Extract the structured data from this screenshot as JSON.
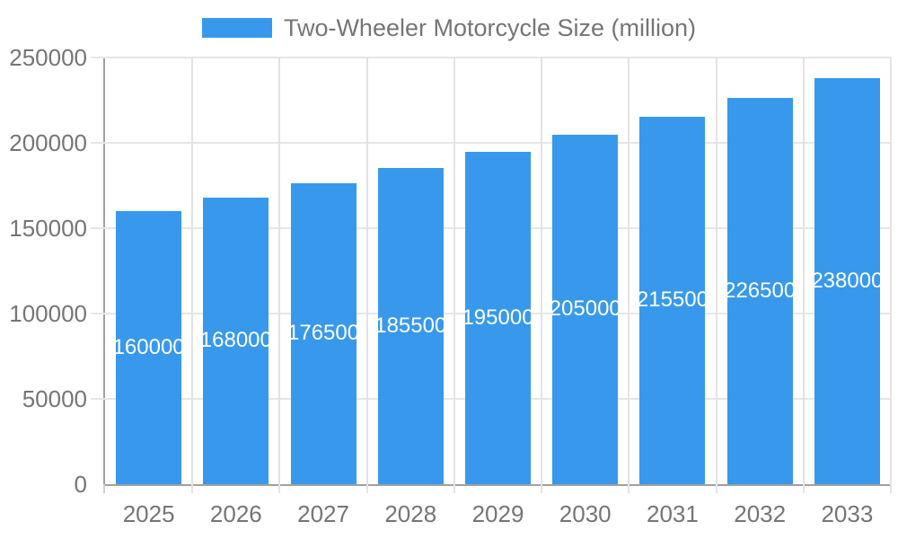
{
  "legend": {
    "label": "Two-Wheeler Motorcycle Size (million)"
  },
  "chart_data": {
    "type": "bar",
    "title": "",
    "xlabel": "",
    "ylabel": "",
    "categories": [
      "2025",
      "2026",
      "2027",
      "2028",
      "2029",
      "2030",
      "2031",
      "2032",
      "2033"
    ],
    "series": [
      {
        "name": "Two-Wheeler Motorcycle Size (million)",
        "values": [
          160000,
          168000,
          176500,
          185500,
          195000,
          205000,
          215500,
          226500,
          238000
        ]
      }
    ],
    "bar_labels": [
      "160000",
      "168000",
      "176500",
      "185500",
      "195000",
      "205000",
      "215500",
      "226500",
      "238000"
    ],
    "ylim": [
      0,
      250000
    ],
    "ytick_step": 50000,
    "ytick_labels": [
      "0",
      "50000",
      "100000",
      "150000",
      "200000",
      "250000"
    ],
    "grid": true,
    "legend_position": "top",
    "colors": {
      "bar": "#3899ec",
      "hgrid": "#e6e6e6",
      "vgrid": "#e3e3e3",
      "axis": "#a0a0a0",
      "tick": "#cfcfcf",
      "text": "#757575",
      "value_label": "#ffffff"
    }
  }
}
